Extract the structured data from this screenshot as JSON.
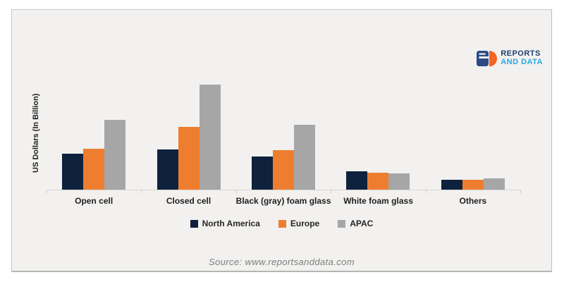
{
  "panel": {
    "background": "#f2f1f0",
    "border_color": "#c9c9c9"
  },
  "logo": {
    "text_top": "REPORTS",
    "text_bottom": "AND DATA",
    "colors": {
      "monogram_blue": "#2d4a85",
      "monogram_orange": "#f26522",
      "text_top": "#1d3e70",
      "text_bottom": "#29a8e0"
    }
  },
  "chart_data": {
    "type": "bar",
    "title": "",
    "xlabel": "",
    "ylabel": "US Dollars  (In Billion)",
    "categories": [
      "Open cell",
      "Closed cell",
      "Black (gray) foam glass",
      "White foam glass",
      "Others"
    ],
    "series": [
      {
        "name": "North America",
        "color": "#0e223d",
        "values": [
          5.1,
          5.7,
          4.7,
          2.6,
          1.4
        ]
      },
      {
        "name": "Europe",
        "color": "#ee7d2f",
        "values": [
          5.8,
          8.9,
          5.6,
          2.4,
          1.4
        ]
      },
      {
        "name": "APAC",
        "color": "#a6a6a6",
        "values": [
          9.9,
          14.9,
          9.2,
          2.3,
          1.6
        ]
      }
    ],
    "ylim": [
      0,
      16
    ],
    "grid": false,
    "legend_position": "bottom",
    "axis_ticks_labeled": false,
    "note": "No numeric y-axis tick labels shown; values estimated proportionally from bar heights."
  },
  "source": {
    "label": "Source: www.reportsanddata.com",
    "color": "#7d7d7d"
  }
}
